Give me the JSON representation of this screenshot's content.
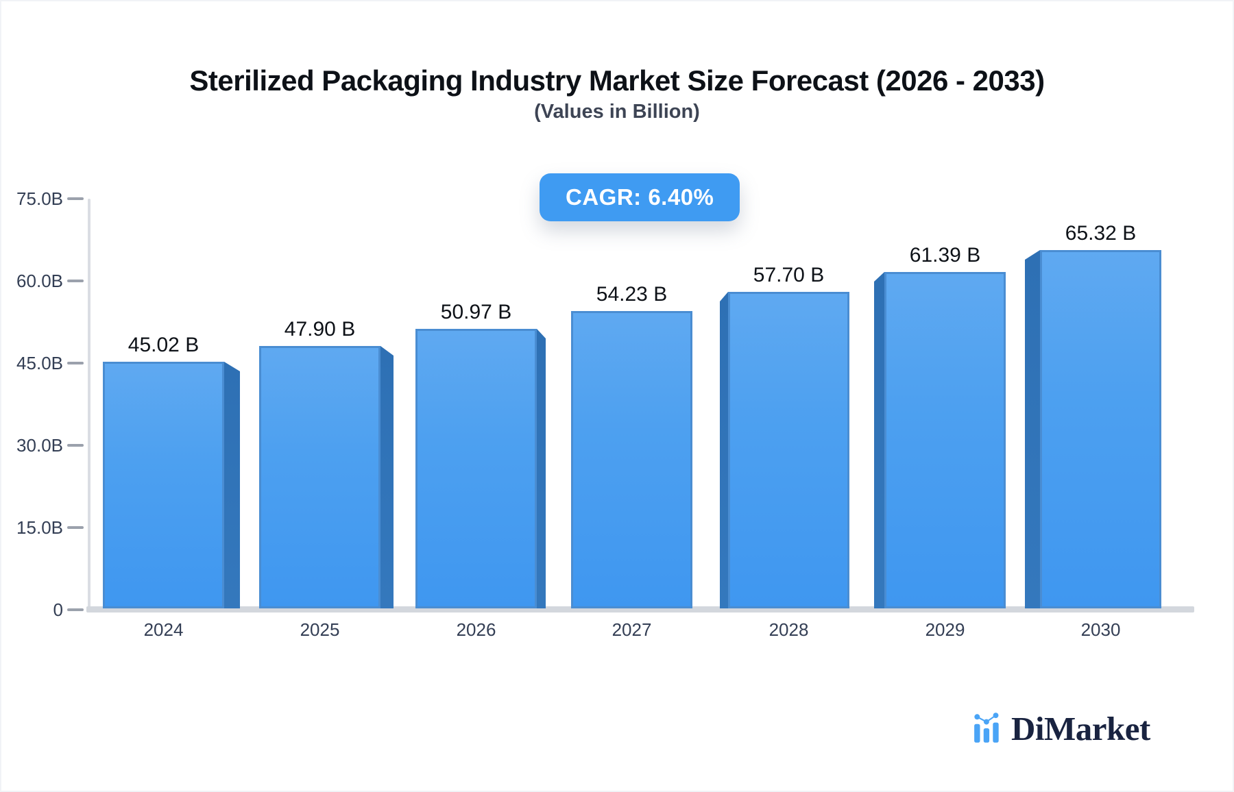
{
  "header": {
    "title": "Sterilized Packaging Industry Market Size Forecast (2026 - 2033)",
    "subtitle": "(Values in Billion)",
    "cagr_badge": "CAGR: 6.40%"
  },
  "chart_data": {
    "type": "bar",
    "title": "Sterilized Packaging Industry Market Size Forecast (2026 - 2033)",
    "subtitle": "(Values in Billion)",
    "cagr": "6.40%",
    "categories": [
      "2024",
      "2025",
      "2026",
      "2027",
      "2028",
      "2029",
      "2030"
    ],
    "values": [
      45.02,
      47.9,
      50.97,
      54.23,
      57.7,
      61.39,
      65.32
    ],
    "value_labels": [
      "45.02 B",
      "47.90 B",
      "50.97 B",
      "54.23 B",
      "57.70 B",
      "61.39 B",
      "65.32 B"
    ],
    "xlabel": "",
    "ylabel": "",
    "ylim": [
      0,
      75
    ],
    "yticks": [
      {
        "value": 0,
        "label": "0"
      },
      {
        "value": 15,
        "label": "15.0B"
      },
      {
        "value": 30,
        "label": "30.0B"
      },
      {
        "value": 45,
        "label": "45.0B"
      },
      {
        "value": 60,
        "label": "60.0B"
      },
      {
        "value": 75,
        "label": "75.0B"
      }
    ],
    "grid": false,
    "legend": false,
    "bar_style": "3d-perspective",
    "colors": {
      "bar_face_top": "#5fa9f1",
      "bar_face_bottom": "#3f97f0",
      "bar_stroke": "#4a8dd2",
      "bar_side": "#2e70b4",
      "badge_bg": "#3f9bf2",
      "badge_text": "#ffffff",
      "axis_line": "#dadde3",
      "tick_text": "#333e54",
      "value_text": "#0d1117",
      "title_text": "#0d1117"
    }
  },
  "branding": {
    "logo_text": "DiMarket",
    "logo_icon": "bar-chart-icon",
    "logo_text_color": "#192340",
    "logo_icon_color": "#4aa4f6"
  }
}
